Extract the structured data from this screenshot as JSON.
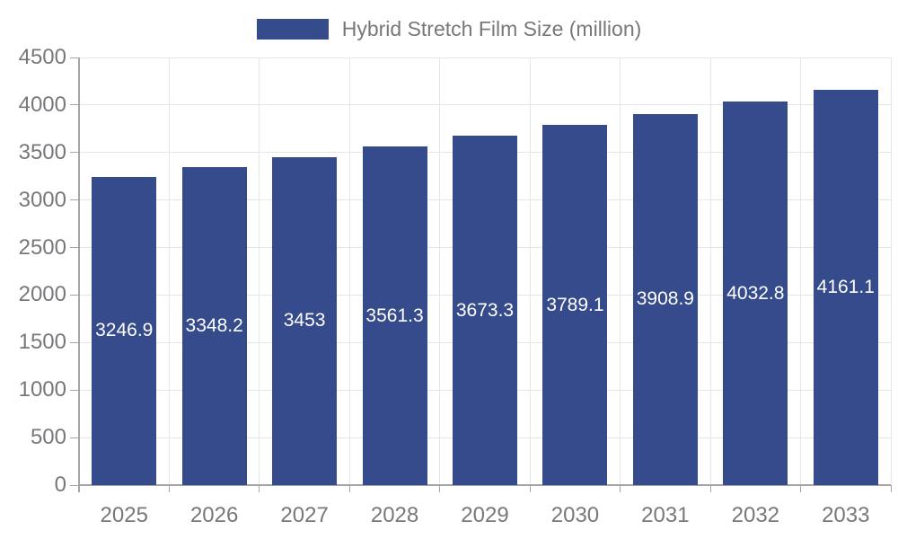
{
  "legend": {
    "label": "Hybrid Stretch Film Size (million)"
  },
  "chart_data": {
    "type": "bar",
    "title": "Hybrid Stretch Film Size (million)",
    "categories": [
      "2025",
      "2026",
      "2027",
      "2028",
      "2029",
      "2030",
      "2031",
      "2032",
      "2033"
    ],
    "values": [
      3246.9,
      3348.2,
      3453,
      3561.3,
      3673.3,
      3789.1,
      3908.9,
      4032.8,
      4161.1
    ],
    "value_labels": [
      "3246.9",
      "3348.2",
      "3453",
      "3561.3",
      "3673.3",
      "3789.1",
      "3908.9",
      "4032.8",
      "4161.1"
    ],
    "xlabel": "",
    "ylabel": "",
    "ylim": [
      0,
      4500
    ],
    "ytick_step": 500,
    "ytick_labels": [
      "0",
      "500",
      "1000",
      "1500",
      "2000",
      "2500",
      "3000",
      "3500",
      "4000",
      "4500"
    ],
    "grid": true,
    "legend_position": "top-center"
  },
  "colors": {
    "bar": "#364B8C",
    "grid_line": "#e6e6e6",
    "axis_line": "#a5a5a5",
    "tick_text": "#76787b",
    "value_text": "#ffffff",
    "background": "#ffffff"
  }
}
